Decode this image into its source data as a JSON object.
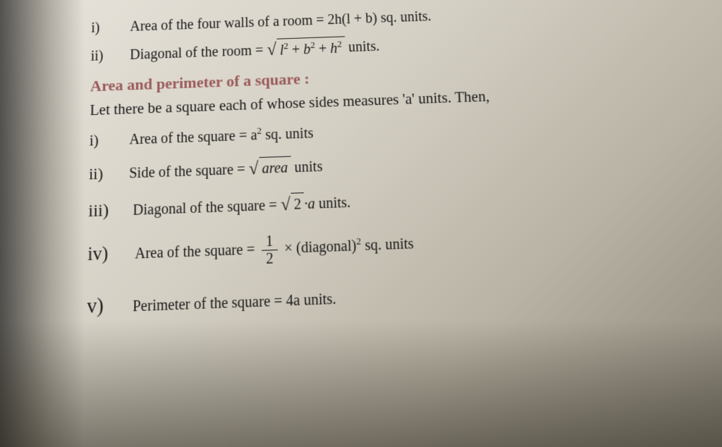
{
  "room": {
    "items": [
      {
        "label": "i)",
        "prefix": "Area of the four walls of a room = ",
        "expr": "2h(l + b) sq. units."
      },
      {
        "label": "ii)",
        "prefix": "Diagonal of the room = ",
        "sqrt_arg_l": "l",
        "sqrt_arg_b": "b",
        "sqrt_arg_h": "h",
        "suffix": " units."
      }
    ]
  },
  "section_title": "Area and perimeter of a square :",
  "intro": "Let there be a square each of whose sides measures 'a' units. Then,",
  "square": {
    "items": [
      {
        "label": "i)",
        "prefix": "Area of the square = a",
        "sup": "2",
        "suffix": " sq. units"
      },
      {
        "label": "ii)",
        "prefix": "Side of the square = ",
        "sqrt_arg": "area",
        "suffix": " units"
      },
      {
        "label": "iii)",
        "prefix": "Diagonal of the square = ",
        "sqrt2": "2",
        "dot_a": "·a",
        "suffix": " units."
      },
      {
        "label": "iv)",
        "prefix": "Area of the square = ",
        "frac_num": "1",
        "frac_den": "2",
        "times": " × (diagonal)",
        "sup": "2",
        "suffix": " sq. units"
      },
      {
        "label": "v)",
        "text": "Perimeter of the square = 4a units."
      }
    ]
  },
  "colors": {
    "section_title": "#9a5a5a",
    "text": "#1a1a1a",
    "bg_light": "#e8e4dc",
    "bg_dark": "#8a8578"
  },
  "fontsizes": {
    "row1": 19,
    "row2": 20,
    "section": 22,
    "intro": 21,
    "sq1": 21,
    "sq2": 22,
    "sq3": 24,
    "sq4": 25,
    "sq5": 27
  }
}
